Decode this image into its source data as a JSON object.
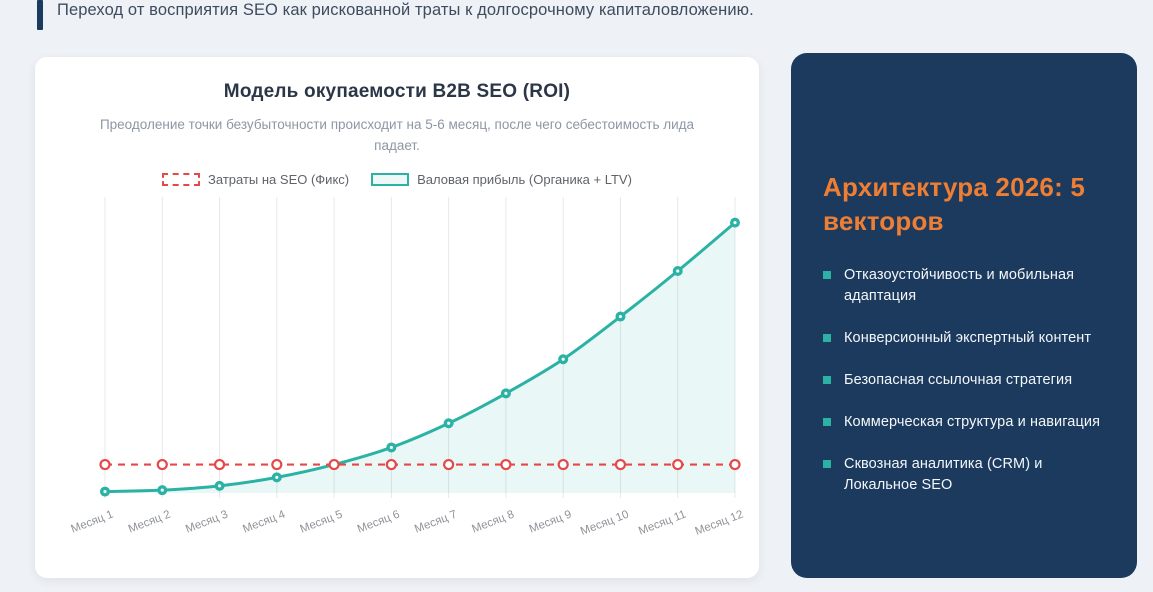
{
  "quote": {
    "text": "Переход от восприятия SEO как рискованной траты к долгосрочному капиталовложению."
  },
  "chart_card": {
    "title": "Модель окупаемости B2B SEO (ROI)",
    "subtitle": "Преодоление точки безубыточности происходит на 5-6 месяц, после чего себестоимость лида падает."
  },
  "chart_data": {
    "type": "line",
    "title": "Модель окупаемости B2B SEO (ROI)",
    "x": [
      "Месяц 1",
      "Месяц 2",
      "Месяц 3",
      "Месяц 4",
      "Месяц 5",
      "Месяц 6",
      "Месяц 7",
      "Месяц 8",
      "Месяц 9",
      "Месяц 10",
      "Месяц 11",
      "Месяц 12"
    ],
    "series": [
      {
        "name": "Затраты на SEO (Фикс)",
        "values": [
          100,
          100,
          100,
          100,
          100,
          100,
          100,
          100,
          100,
          100,
          100,
          100
        ],
        "color": "#e54848",
        "style": "dashed",
        "fill": false
      },
      {
        "name": "Валовая прибыль (Органика + LTV)",
        "values": [
          5,
          10,
          25,
          55,
          100,
          160,
          245,
          350,
          470,
          620,
          780,
          950
        ],
        "color": "#2cb2a4",
        "style": "solid",
        "fill": true
      }
    ],
    "xlabel": "",
    "ylabel": "",
    "ylim": [
      0,
      1040
    ],
    "grid": "vertical-only",
    "legend_position": "top",
    "breakeven_month_index": 4
  },
  "side_card": {
    "title": "Архитектура 2026: 5 векторов",
    "items": [
      "Отказоустойчивость и мобильная адаптация",
      "Конверсионный экспертный контент",
      "Безопасная ссылочная стратегия",
      "Коммерческая структура и навигация",
      "Сквозная аналитика (CRM) и Локальное SEO"
    ]
  },
  "colors": {
    "page_background": "#eef1f5",
    "card_background": "#ffffff",
    "side_card_background": "#1c3a5e",
    "side_card_accent": "#ee7e33",
    "bullet": "#2cb2a4",
    "costs_line": "#e54848",
    "profit_line": "#2cb2a4",
    "profit_fill": "rgba(44,178,164,0.10)",
    "gridline": "#e7e8ea",
    "axis_label": "#8f9398"
  }
}
